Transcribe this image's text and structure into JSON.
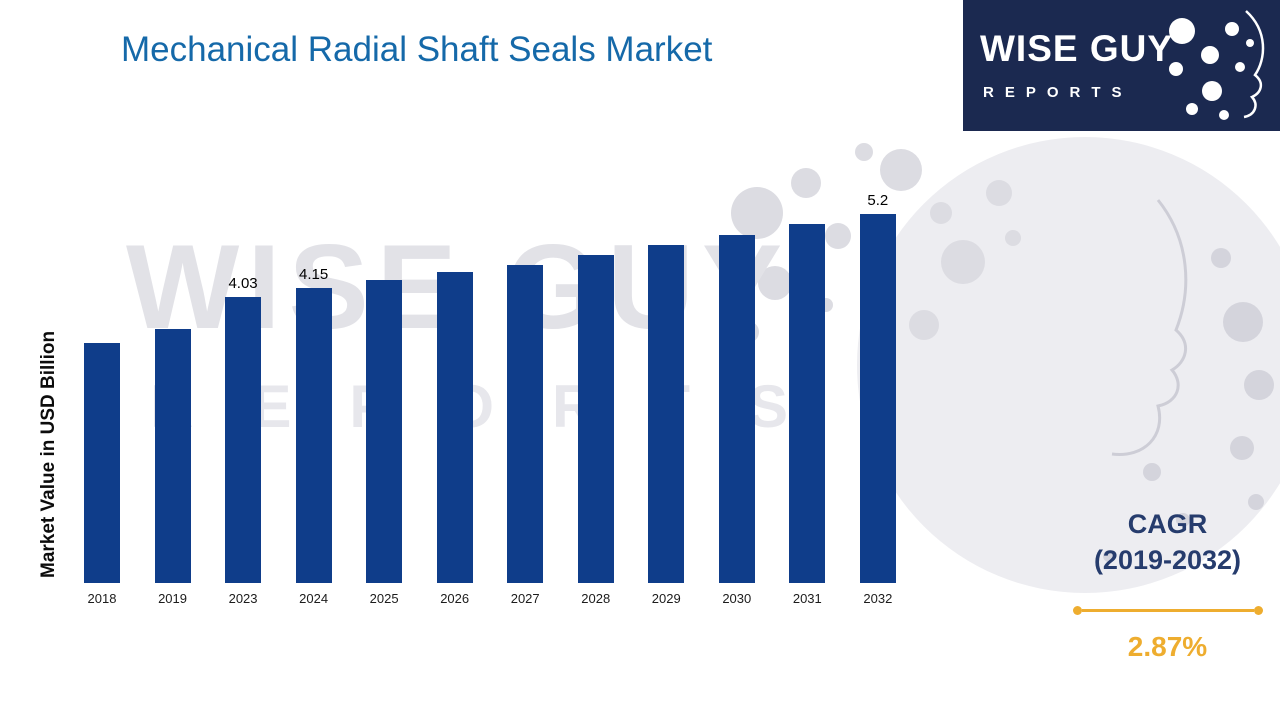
{
  "title": {
    "text": "Mechanical Radial Shaft Seals Market"
  },
  "watermark": {
    "line1": "WISE GUY",
    "line2": "REPORTS"
  },
  "logo": {
    "line1": "WISE GUY",
    "line2": "REPORTS"
  },
  "cagr": {
    "label_line1": "CAGR",
    "label_line2": "(2019-2032)",
    "value": "2.87%"
  },
  "colors": {
    "bar_navy": "#0f3d8a",
    "title_blue": "#1569a9",
    "logo_navy": "#1b2950",
    "cagr_navy": "#263c6d",
    "accent_gold": "#eead2f",
    "watermark_gray": "#e2e2e7"
  },
  "chart_data": {
    "type": "bar",
    "title": "Mechanical Radial Shaft Seals Market",
    "xlabel": "",
    "ylabel": "Market Value in USD Billion",
    "unit": "USD Billion",
    "categories": [
      "2018",
      "2019",
      "2023",
      "2024",
      "2025",
      "2026",
      "2027",
      "2028",
      "2029",
      "2030",
      "2031",
      "2032"
    ],
    "values": [
      3.38,
      3.58,
      4.03,
      4.15,
      4.27,
      4.38,
      4.48,
      4.62,
      4.76,
      4.9,
      5.05,
      5.2
    ],
    "data_labels": [
      "",
      "",
      "4.03",
      "4.15",
      "",
      "",
      "",
      "",
      "",
      "",
      "",
      "5.2"
    ],
    "ylim": [
      0,
      5.5
    ],
    "grid": false,
    "legend_position": "none",
    "bar_color": "#0f3d8a"
  }
}
